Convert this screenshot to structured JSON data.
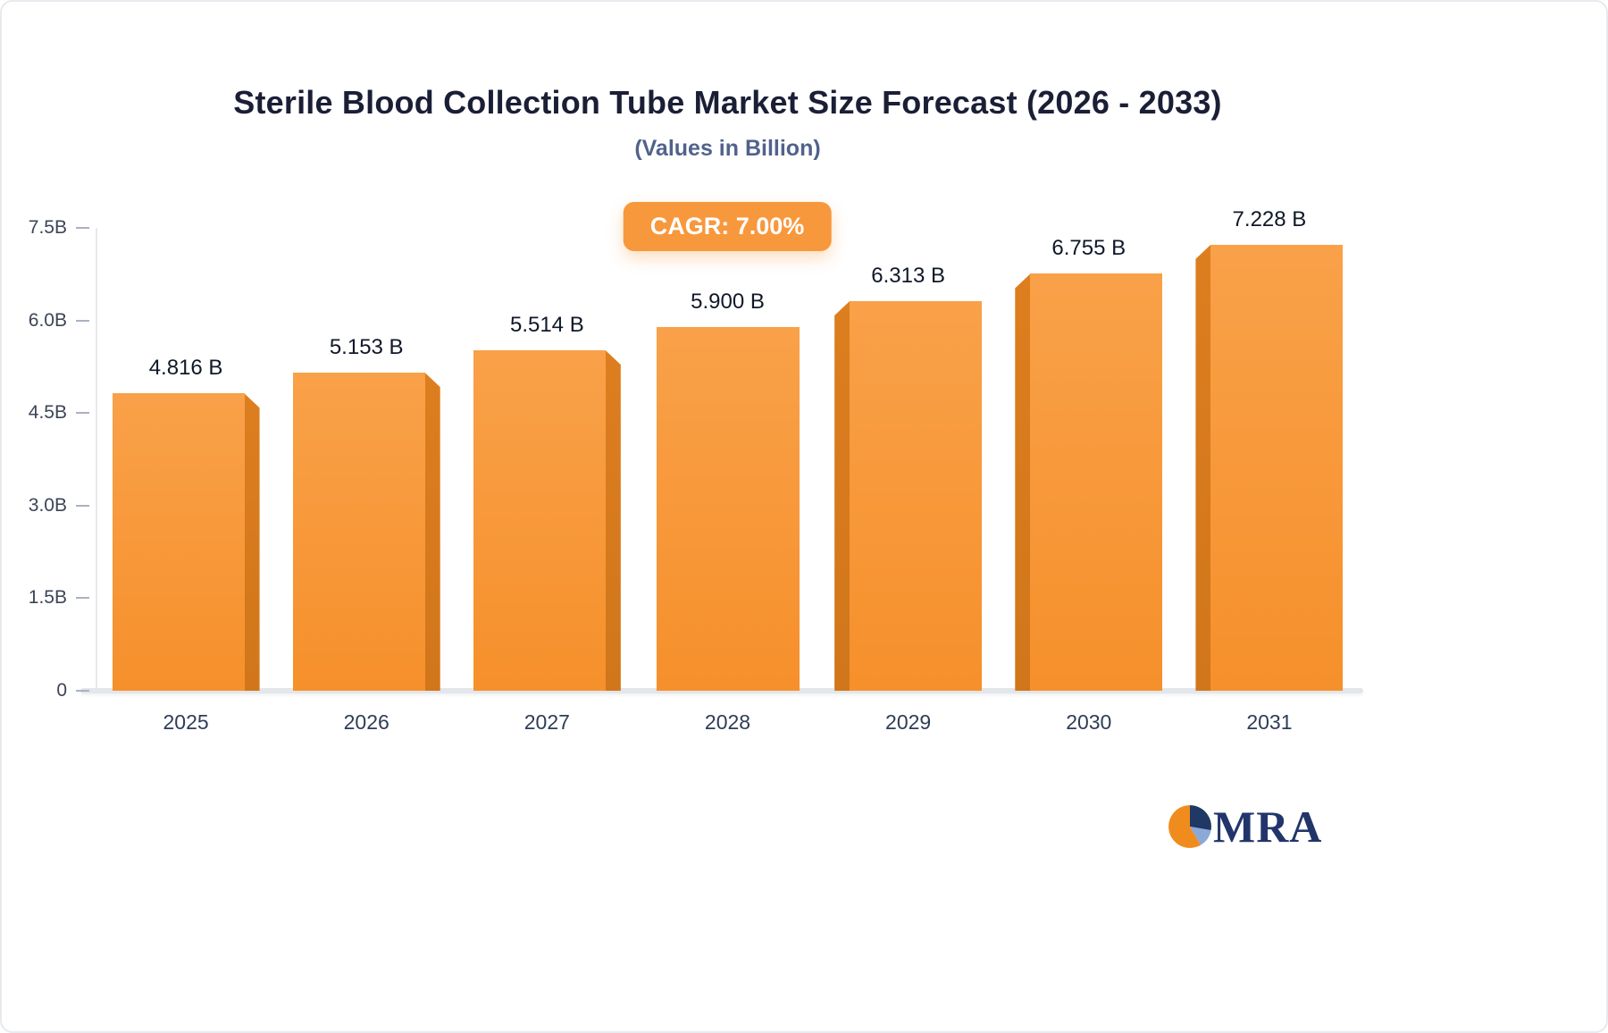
{
  "header": {
    "title": "Sterile Blood Collection Tube Market Size Forecast (2026 - 2033)",
    "subtitle": "(Values in Billion)"
  },
  "badge": {
    "label": "CAGR: 7.00%",
    "background": "#F8983C",
    "text_color": "#FFFFFF"
  },
  "logo": {
    "text": "MRA"
  },
  "chart_data": {
    "type": "bar",
    "title": "Sterile Blood Collection Tube Market Size Forecast (2026 - 2033)",
    "subtitle": "(Values in Billion)",
    "categories": [
      "2025",
      "2026",
      "2027",
      "2028",
      "2029",
      "2030",
      "2031"
    ],
    "values": [
      4.816,
      5.153,
      5.514,
      5.9,
      6.313,
      6.755,
      7.228
    ],
    "value_labels": [
      "4.816 B",
      "5.153 B",
      "5.514 B",
      "5.900 B",
      "6.313 B",
      "6.755 B",
      "7.228 B"
    ],
    "xlabel": "",
    "ylabel": "",
    "ylim": [
      0,
      7.5
    ],
    "yticks": [
      {
        "value": 0,
        "label": "0"
      },
      {
        "value": 1.5,
        "label": "1.5B"
      },
      {
        "value": 3.0,
        "label": "3.0B"
      },
      {
        "value": 4.5,
        "label": "4.5B"
      },
      {
        "value": 6.0,
        "label": "6.0B"
      },
      {
        "value": 7.5,
        "label": "7.5B"
      }
    ],
    "grid": false,
    "legend": "none",
    "annotations": [
      "CAGR: 7.00%"
    ],
    "bar_color": "#F89B3F",
    "bar_side_color": "#DD7E1F",
    "bar_3d_side": [
      "right",
      "right",
      "right",
      "none",
      "left",
      "left",
      "left"
    ]
  }
}
